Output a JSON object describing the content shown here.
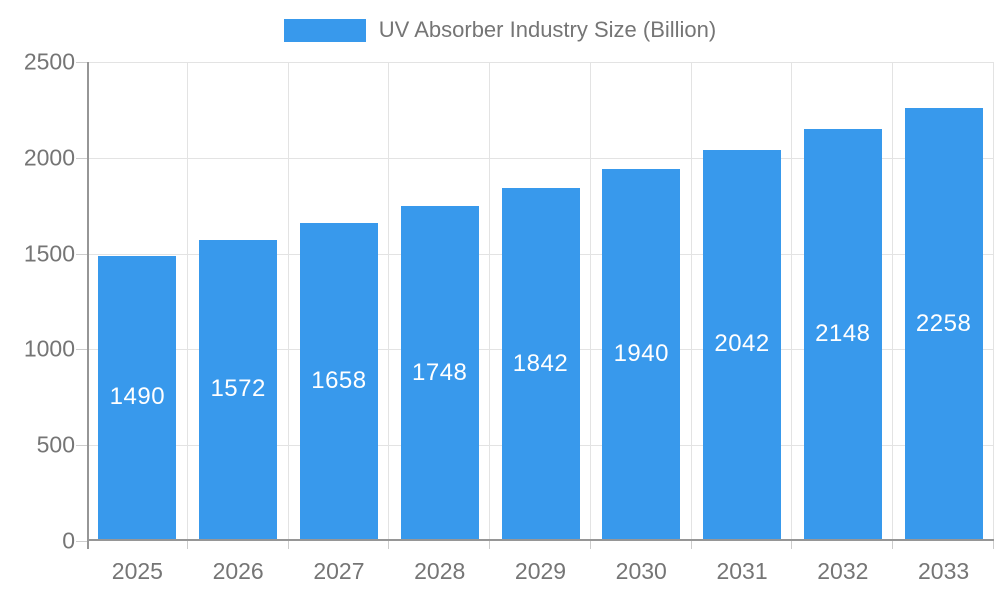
{
  "chart_data": {
    "type": "bar",
    "title": "",
    "categories": [
      "2025",
      "2026",
      "2027",
      "2028",
      "2029",
      "2030",
      "2031",
      "2032",
      "2033"
    ],
    "series": [
      {
        "name": "UV Absorber Industry Size (Billion)",
        "values": [
          1490,
          1572,
          1658,
          1748,
          1842,
          1940,
          2042,
          2148,
          2258
        ]
      }
    ],
    "xlabel": "",
    "ylabel": "",
    "ylim": [
      0,
      2500
    ],
    "yticks": [
      0,
      500,
      1000,
      1500,
      2000,
      2500
    ],
    "grid": true,
    "legend_position": "top-center",
    "value_labels": "inside-center",
    "colors": {
      "bar": "#3899EC",
      "value_label": "#FFFFFF",
      "axis_text": "#757575",
      "gridline": "#E3E3E3",
      "tick": "#CCCCCC",
      "axis_line": "#969696",
      "background": "#FFFFFF"
    }
  }
}
